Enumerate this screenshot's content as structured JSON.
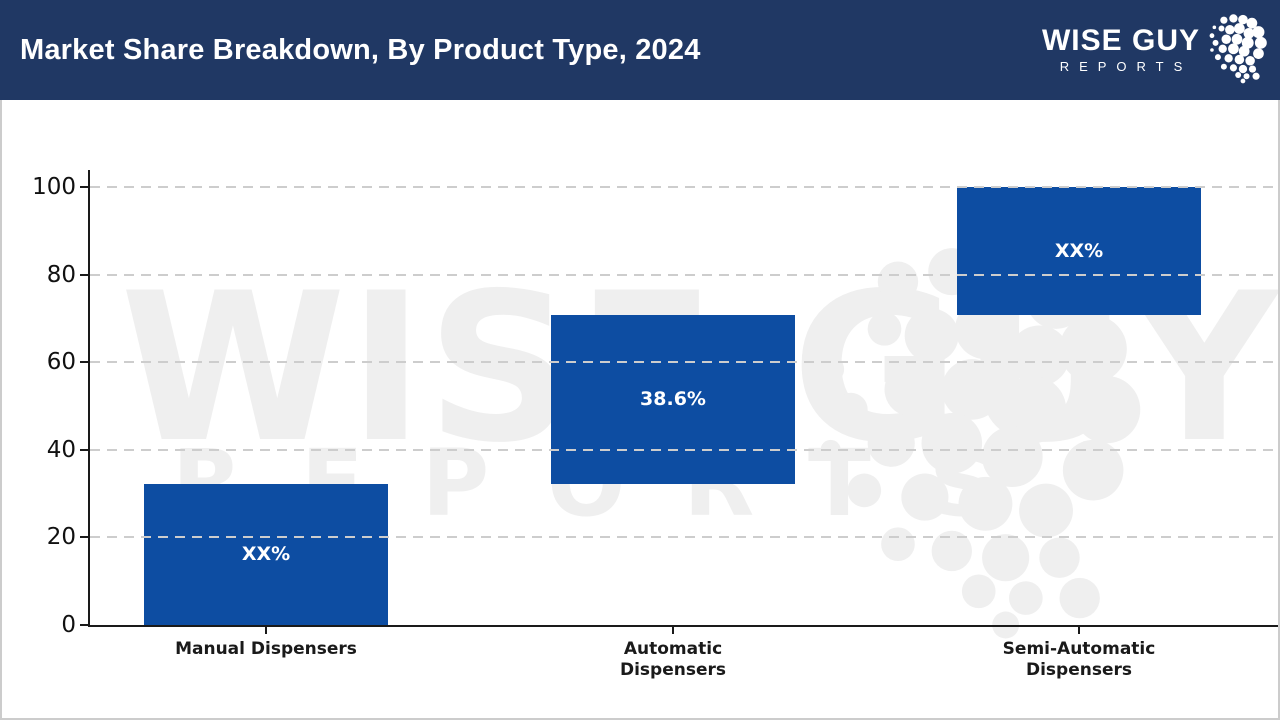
{
  "header": {
    "title": "Market Share Breakdown, By Product Type, 2024",
    "logo": {
      "line1": "WISE GUY",
      "line2": "REPORTS"
    }
  },
  "watermark": {
    "line1": "WISE GUY",
    "line2": "REPORTS"
  },
  "colors": {
    "header_bg": "#203864",
    "bar": "#0d4da2",
    "grid": "#cdcdcd",
    "axis": "#1a1a1a",
    "watermark": "#efefef",
    "edge_border": "#cccccc",
    "title_text": "#ffffff",
    "tick_text": "#111111"
  },
  "chart_data": {
    "type": "bar",
    "subtype": "floating-segment-waterfall",
    "title": "Market Share Breakdown, By Product Type, 2024",
    "xlabel": "",
    "ylabel": "",
    "ylim": [
      0,
      100
    ],
    "yticks": [
      0,
      20,
      40,
      60,
      80,
      100
    ],
    "grid": "horizontal dashed, drawn above bars",
    "legend": "none",
    "categories": [
      {
        "lines": [
          "Manual Dispensers"
        ]
      },
      {
        "lines": [
          "Automatic",
          "Dispensers"
        ]
      },
      {
        "lines": [
          "Semi-Automatic",
          "Dispensers"
        ]
      }
    ],
    "segments": [
      {
        "category": "Manual Dispensers",
        "start": 0,
        "end": 32.2,
        "label": "XX%"
      },
      {
        "category": "Automatic Dispensers",
        "start": 32.2,
        "end": 70.8,
        "label": "38.6%"
      },
      {
        "category": "Semi-Automatic Dispensers",
        "start": 70.8,
        "end": 100,
        "label": "XX%"
      }
    ]
  }
}
